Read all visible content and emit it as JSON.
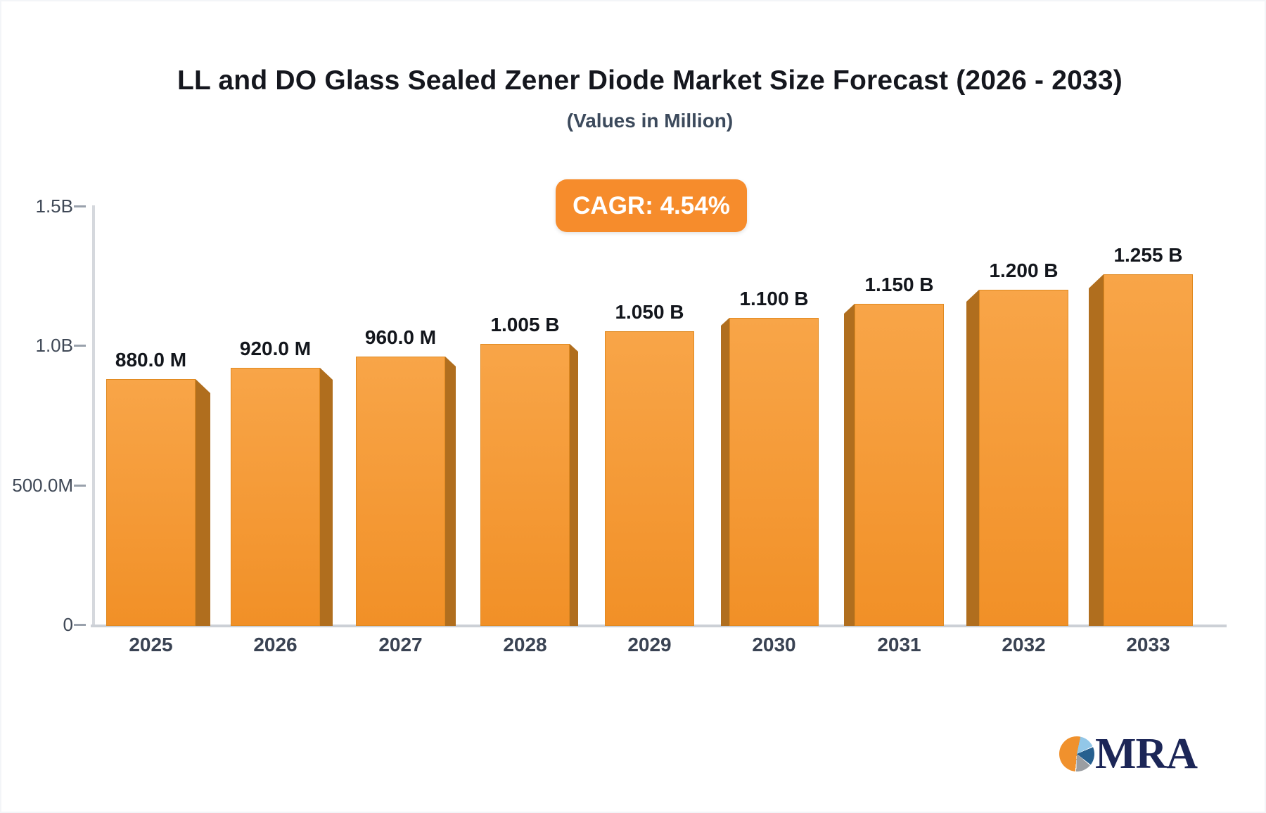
{
  "chart_data": {
    "type": "bar",
    "title": "LL and DO Glass Sealed Zener Diode Market Size Forecast (2026 - 2033)",
    "subtitle": "(Values in Million)",
    "badge_label": "CAGR: 4.54%",
    "xlabel": "",
    "ylabel": "",
    "unit": "millions",
    "categories": [
      "2025",
      "2026",
      "2027",
      "2028",
      "2029",
      "2030",
      "2031",
      "2032",
      "2033"
    ],
    "values": [
      880,
      920,
      960,
      1005,
      1050,
      1100,
      1150,
      1200,
      1255
    ],
    "value_labels": [
      "880.0 M",
      "920.0 M",
      "960.0 M",
      "1.005 B",
      "1.050 B",
      "1.100 B",
      "1.150 B",
      "1.200 B",
      "1.255 B"
    ],
    "ylim_millions": [
      0,
      1500
    ],
    "yticks": [
      {
        "label": "0",
        "value": 0
      },
      {
        "label": "500.0M",
        "value": 500
      },
      {
        "label": "1.0B",
        "value": 1000
      },
      {
        "label": "1.5B",
        "value": 1500
      }
    ],
    "grid": false,
    "legend": false,
    "colors": {
      "bar_top": "#f8a548",
      "bar_bottom": "#f19027",
      "bar_side": "#b06e1e",
      "badge_bg": "#f68c2c",
      "axis_line": "#ccd0d6",
      "tick_text": "#3f4856"
    }
  },
  "brand": {
    "logo_text": "MRA",
    "pie_colors": {
      "orange": "#f0912d",
      "light_blue": "#92c7e8",
      "navy": "#27608f",
      "gray": "#9b9ea2"
    }
  }
}
